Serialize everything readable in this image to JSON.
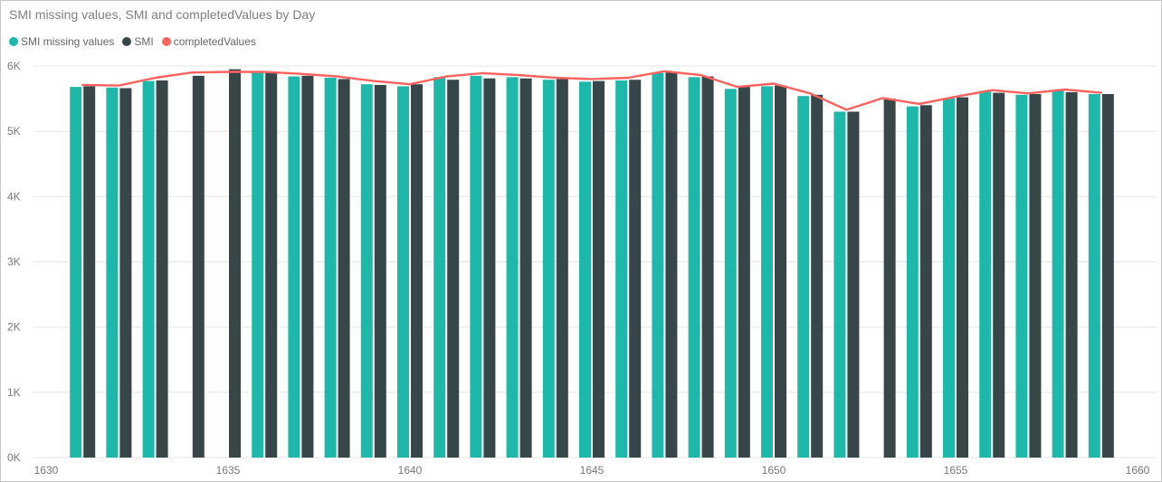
{
  "title": "SMI missing values, SMI and completedValues by Day",
  "legend": {
    "position": "top-left",
    "items": [
      {
        "label": "SMI missing values",
        "color": "#1EB8AA"
      },
      {
        "label": "SMI",
        "color": "#374649"
      },
      {
        "label": "completedValues",
        "color": "#FD625E"
      }
    ]
  },
  "colors": {
    "background": "#FFFFFF",
    "border": "#C6C6C6",
    "gridline": "#E6E6E6",
    "axis_text": "#777777",
    "title_text": "#7E7E7E",
    "legend_text": "#666666",
    "teal": "#1EB8AA",
    "dark": "#374649",
    "red": "#FD625E"
  },
  "chart_data": {
    "type": "bar",
    "subtype": "clustered-bar-with-line",
    "title": "SMI missing values, SMI and completedValues by Day",
    "xlabel": "Day",
    "ylabel": "",
    "grid": true,
    "legend_position": "top-left",
    "xlim": [
      1630,
      1660
    ],
    "ylim": [
      0,
      6000
    ],
    "x_ticks": [
      1630,
      1635,
      1640,
      1645,
      1650,
      1655,
      1660
    ],
    "y_tick_labels": [
      "0K",
      "1K",
      "2K",
      "3K",
      "4K",
      "5K",
      "6K"
    ],
    "y_tick_values": [
      0,
      1000,
      2000,
      3000,
      4000,
      5000,
      6000
    ],
    "x": [
      1631,
      1632,
      1633,
      1634,
      1635,
      1636,
      1637,
      1638,
      1639,
      1640,
      1641,
      1642,
      1643,
      1644,
      1645,
      1646,
      1647,
      1648,
      1649,
      1650,
      1651,
      1652,
      1653,
      1654,
      1655,
      1656,
      1657,
      1658,
      1659
    ],
    "series": [
      {
        "name": "SMI missing values",
        "type": "bar",
        "color": "#1EB8AA",
        "values": [
          5680,
          5670,
          5770,
          null,
          null,
          5900,
          5840,
          5820,
          5720,
          5690,
          5830,
          5850,
          5830,
          5790,
          5760,
          5780,
          5890,
          5830,
          5650,
          5690,
          5540,
          5300,
          null,
          5380,
          5510,
          5620,
          5560,
          5620,
          5570
        ]
      },
      {
        "name": "SMI",
        "type": "bar",
        "color": "#374649",
        "values": [
          5690,
          5660,
          5780,
          5850,
          5950,
          5910,
          5850,
          5800,
          5710,
          5720,
          5790,
          5810,
          5810,
          5800,
          5770,
          5790,
          5900,
          5840,
          5680,
          5700,
          5560,
          5300,
          5500,
          5400,
          5520,
          5590,
          5570,
          5600,
          5570
        ]
      },
      {
        "name": "completedValues",
        "type": "line",
        "color": "#FD625E",
        "values": [
          5710,
          5700,
          5820,
          5900,
          5910,
          5910,
          5880,
          5840,
          5770,
          5720,
          5840,
          5890,
          5860,
          5820,
          5800,
          5820,
          5920,
          5860,
          5680,
          5730,
          5580,
          5330,
          5510,
          5420,
          5530,
          5630,
          5580,
          5640,
          5590
        ]
      }
    ]
  }
}
